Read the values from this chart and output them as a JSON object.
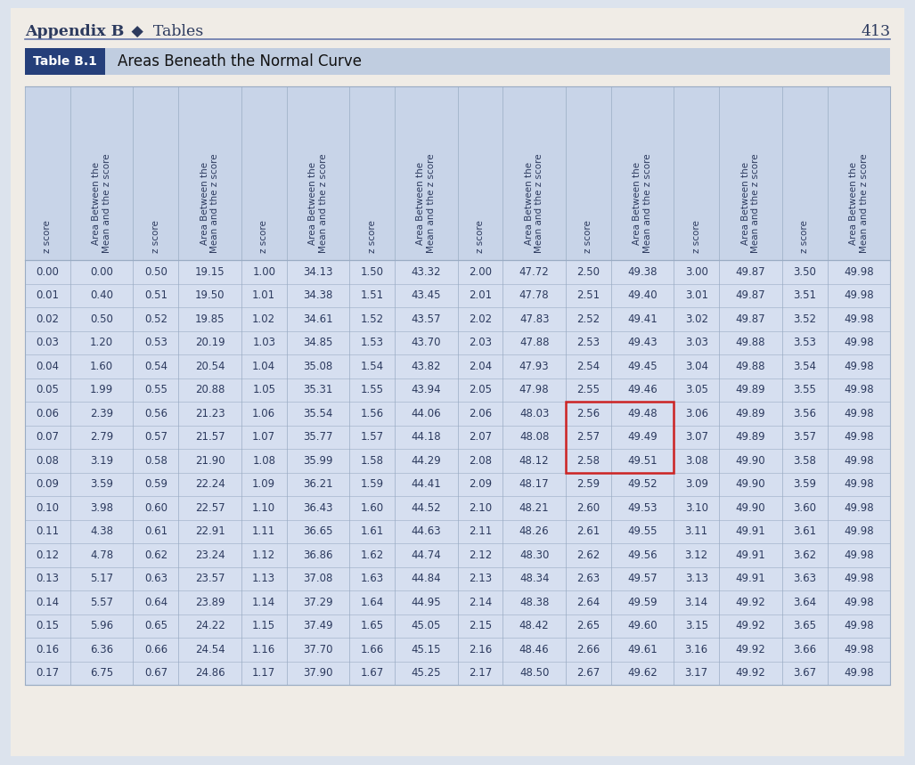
{
  "page_title_bold": "Appendix B",
  "page_title_rest": " ◆  Tables",
  "page_number": "413",
  "table_label": "Table B.1",
  "table_subtitle": "Areas Beneath the Normal Curve",
  "col_headers": [
    "z score",
    "Area Between the\nMean and the z score",
    "z score",
    "Area Between the\nMean and the z score",
    "z score",
    "Area Between the\nMean and the z score",
    "z score",
    "Area Between the\nMean and the z score",
    "z score",
    "Area Between the\nMean and the z score",
    "z score",
    "Area Between the\nMean and the z score",
    "z score",
    "Area Between the\nMean and the z score",
    "z score",
    "Area Between the\nMean and the z score"
  ],
  "rows": [
    [
      "0.00",
      "0.00",
      "0.50",
      "19.15",
      "1.00",
      "34.13",
      "1.50",
      "43.32",
      "2.00",
      "47.72",
      "2.50",
      "49.38",
      "3.00",
      "49.87",
      "3.50",
      "49.98"
    ],
    [
      "0.01",
      "0.40",
      "0.51",
      "19.50",
      "1.01",
      "34.38",
      "1.51",
      "43.45",
      "2.01",
      "47.78",
      "2.51",
      "49.40",
      "3.01",
      "49.87",
      "3.51",
      "49.98"
    ],
    [
      "0.02",
      "0.50",
      "0.52",
      "19.85",
      "1.02",
      "34.61",
      "1.52",
      "43.57",
      "2.02",
      "47.83",
      "2.52",
      "49.41",
      "3.02",
      "49.87",
      "3.52",
      "49.98"
    ],
    [
      "0.03",
      "1.20",
      "0.53",
      "20.19",
      "1.03",
      "34.85",
      "1.53",
      "43.70",
      "2.03",
      "47.88",
      "2.53",
      "49.43",
      "3.03",
      "49.88",
      "3.53",
      "49.98"
    ],
    [
      "0.04",
      "1.60",
      "0.54",
      "20.54",
      "1.04",
      "35.08",
      "1.54",
      "43.82",
      "2.04",
      "47.93",
      "2.54",
      "49.45",
      "3.04",
      "49.88",
      "3.54",
      "49.98"
    ],
    [
      "0.05",
      "1.99",
      "0.55",
      "20.88",
      "1.05",
      "35.31",
      "1.55",
      "43.94",
      "2.05",
      "47.98",
      "2.55",
      "49.46",
      "3.05",
      "49.89",
      "3.55",
      "49.98"
    ],
    [
      "0.06",
      "2.39",
      "0.56",
      "21.23",
      "1.06",
      "35.54",
      "1.56",
      "44.06",
      "2.06",
      "48.03",
      "2.56",
      "49.48",
      "3.06",
      "49.89",
      "3.56",
      "49.98"
    ],
    [
      "0.07",
      "2.79",
      "0.57",
      "21.57",
      "1.07",
      "35.77",
      "1.57",
      "44.18",
      "2.07",
      "48.08",
      "2.57",
      "49.49",
      "3.07",
      "49.89",
      "3.57",
      "49.98"
    ],
    [
      "0.08",
      "3.19",
      "0.58",
      "21.90",
      "1.08",
      "35.99",
      "1.58",
      "44.29",
      "2.08",
      "48.12",
      "2.58",
      "49.51",
      "3.08",
      "49.90",
      "3.58",
      "49.98"
    ],
    [
      "0.09",
      "3.59",
      "0.59",
      "22.24",
      "1.09",
      "36.21",
      "1.59",
      "44.41",
      "2.09",
      "48.17",
      "2.59",
      "49.52",
      "3.09",
      "49.90",
      "3.59",
      "49.98"
    ],
    [
      "0.10",
      "3.98",
      "0.60",
      "22.57",
      "1.10",
      "36.43",
      "1.60",
      "44.52",
      "2.10",
      "48.21",
      "2.60",
      "49.53",
      "3.10",
      "49.90",
      "3.60",
      "49.98"
    ],
    [
      "0.11",
      "4.38",
      "0.61",
      "22.91",
      "1.11",
      "36.65",
      "1.61",
      "44.63",
      "2.11",
      "48.26",
      "2.61",
      "49.55",
      "3.11",
      "49.91",
      "3.61",
      "49.98"
    ],
    [
      "0.12",
      "4.78",
      "0.62",
      "23.24",
      "1.12",
      "36.86",
      "1.62",
      "44.74",
      "2.12",
      "48.30",
      "2.62",
      "49.56",
      "3.12",
      "49.91",
      "3.62",
      "49.98"
    ],
    [
      "0.13",
      "5.17",
      "0.63",
      "23.57",
      "1.13",
      "37.08",
      "1.63",
      "44.84",
      "2.13",
      "48.34",
      "2.63",
      "49.57",
      "3.13",
      "49.91",
      "3.63",
      "49.98"
    ],
    [
      "0.14",
      "5.57",
      "0.64",
      "23.89",
      "1.14",
      "37.29",
      "1.64",
      "44.95",
      "2.14",
      "48.38",
      "2.64",
      "49.59",
      "3.14",
      "49.92",
      "3.64",
      "49.98"
    ],
    [
      "0.15",
      "5.96",
      "0.65",
      "24.22",
      "1.15",
      "37.49",
      "1.65",
      "45.05",
      "2.15",
      "48.42",
      "2.65",
      "49.60",
      "3.15",
      "49.92",
      "3.65",
      "49.98"
    ],
    [
      "0.16",
      "6.36",
      "0.66",
      "24.54",
      "1.16",
      "37.70",
      "1.66",
      "45.15",
      "2.16",
      "48.46",
      "2.66",
      "49.61",
      "3.16",
      "49.92",
      "3.66",
      "49.98"
    ],
    [
      "0.17",
      "6.75",
      "0.67",
      "24.86",
      "1.17",
      "37.90",
      "1.67",
      "45.25",
      "2.17",
      "48.50",
      "2.67",
      "49.62",
      "3.17",
      "49.92",
      "3.67",
      "49.98"
    ]
  ],
  "highlight_rows": [
    6,
    7,
    8
  ],
  "highlight_cols": [
    10,
    11
  ],
  "page_bg": "#dce3ed",
  "table_bg": "#d6dff0",
  "header_bg": "#c8d4e8",
  "table_label_bg": "#253f7a",
  "table_label_color": "#ffffff",
  "title_bar_bg": "#c0cde0",
  "grid_color": "#9aacc4",
  "text_color": "#2c3a5e",
  "header_text_color": "#2c3a5e",
  "highlight_color": "#cc2222",
  "rule_color": "#6677aa"
}
